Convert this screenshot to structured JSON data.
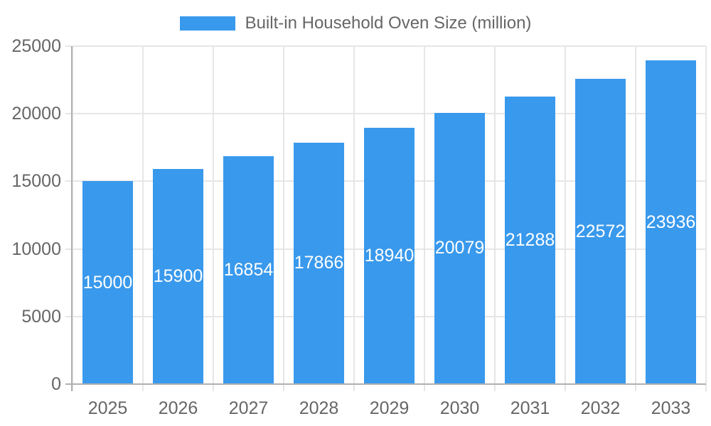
{
  "legend": {
    "label": "Built-in Household Oven Size (million)"
  },
  "colors": {
    "bar": "#3999EC",
    "grid": "#E6E6E6",
    "axis": "#B0B0B0",
    "tick_text": "#666666",
    "value_label_text": "#FFFFFF",
    "background": "#FFFFFF"
  },
  "chart_data": {
    "type": "bar",
    "title": "Built-in Household Oven Size (million)",
    "categories": [
      "2025",
      "2026",
      "2027",
      "2028",
      "2029",
      "2030",
      "2031",
      "2032",
      "2033"
    ],
    "values": [
      15000,
      15900,
      16854,
      17866,
      18940,
      20079,
      21288,
      22572,
      23936
    ],
    "xlabel": "",
    "ylabel": "",
    "ylim": [
      0,
      25000
    ],
    "yticks": [
      0,
      5000,
      10000,
      15000,
      20000,
      25000
    ],
    "grid": true,
    "legend_position": "top-center",
    "value_label_position": "inside-center"
  }
}
